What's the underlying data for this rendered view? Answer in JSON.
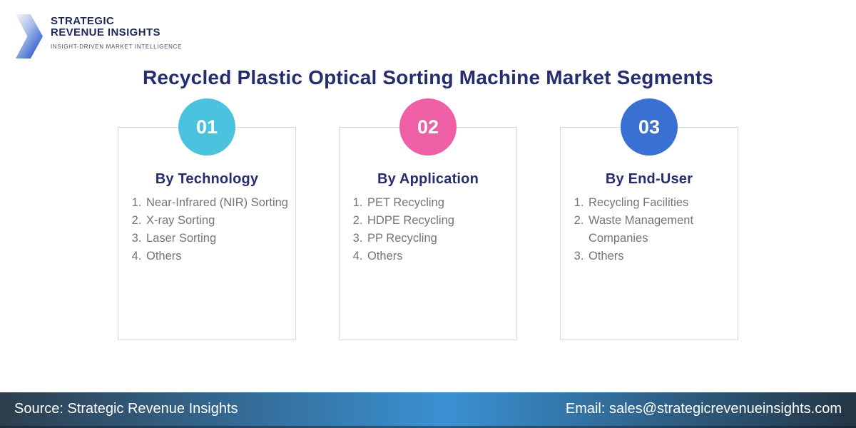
{
  "logo": {
    "name_line1": "STRATEGIC",
    "name_line2": "REVENUE INSIGHTS",
    "tagline": "INSIGHT-DRIVEN MARKET INTELLIGENCE"
  },
  "title": "Recycled Plastic Optical Sorting Machine Market Segments",
  "segments": [
    {
      "number": "01",
      "accent": "#4cc3de",
      "heading": "By Technology",
      "items": [
        "Near-Infrared (NIR) Sorting",
        "X-ray Sorting",
        "Laser Sorting",
        "Others"
      ]
    },
    {
      "number": "02",
      "accent": "#ee5fa6",
      "heading": "By Application",
      "items": [
        "PET Recycling",
        "HDPE Recycling",
        "PP Recycling",
        "Others"
      ]
    },
    {
      "number": "03",
      "accent": "#3a70d2",
      "heading": "By End-User",
      "items": [
        "Recycling Facilities",
        "Waste Management Companies",
        "Others"
      ]
    }
  ],
  "footer": {
    "source": "Source: Strategic Revenue Insights",
    "email": "Email: sales@strategicrevenueinsights.com"
  },
  "colors": {
    "title_navy": "#262d6e",
    "list_gray": "#757575",
    "card_border": "#d9d9d9",
    "footer_gradient_left": "#2d3e4e",
    "footer_gradient_mid": "#3a91d2",
    "footer_gradient_right": "#243545"
  }
}
